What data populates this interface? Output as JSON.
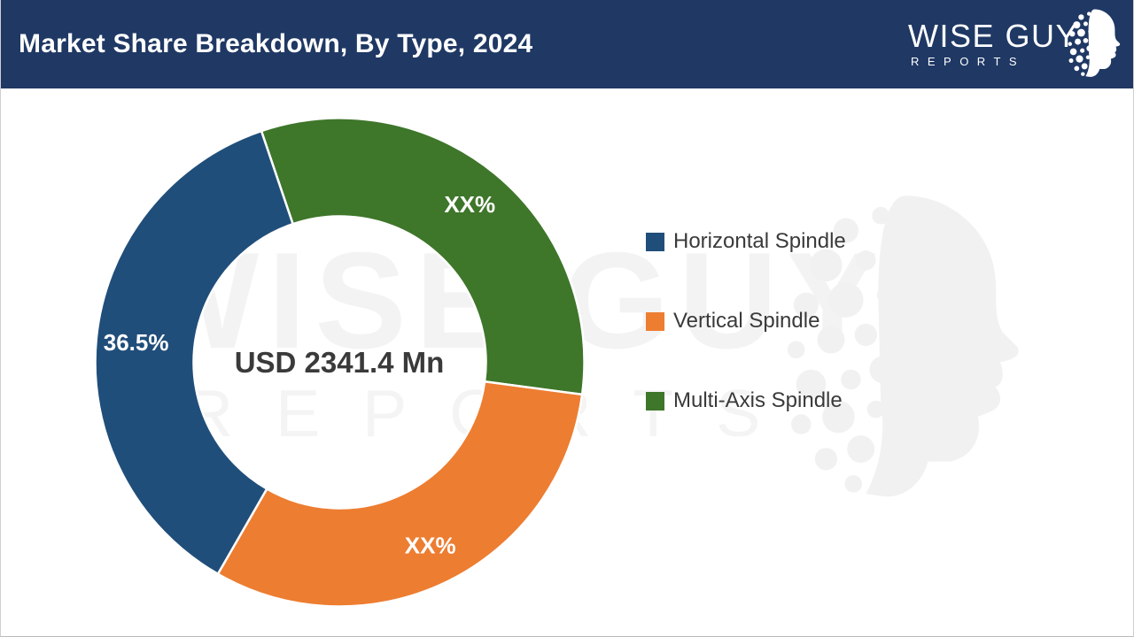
{
  "header": {
    "title": "Market Share Breakdown, By Type, 2024",
    "background_color": "#1f3864",
    "logo": {
      "line1": "WISE GUY",
      "line2": "REPORTS",
      "face_icon": "dotted-head-profile"
    }
  },
  "watermark": {
    "line1": "WISE GUY",
    "line2": "REPORTS",
    "face_icon": "dotted-head-profile"
  },
  "chart_data": {
    "type": "pie",
    "variant": "donut",
    "title": "Market Share Breakdown, By Type, 2024",
    "center_label": "USD 2341.4 Mn",
    "start_angle_deg": -18.7,
    "direction": "clockwise",
    "slices": [
      {
        "name": "Multi-Axis Spindle",
        "display_label": "XX%",
        "value_pct_est": 32.3,
        "color": "#3e762a"
      },
      {
        "name": "Vertical Spindle",
        "display_label": "XX%",
        "value_pct_est": 31.2,
        "color": "#ed7d31"
      },
      {
        "name": "Horizontal Spindle",
        "display_label": "36.5%",
        "value_pct_est": 36.5,
        "color": "#204e7a"
      }
    ],
    "legend_position": "right",
    "legend": [
      {
        "label": "Horizontal Spindle",
        "color": "#204e7a"
      },
      {
        "label": "Vertical Spindle",
        "color": "#ed7d31"
      },
      {
        "label": "Multi-Axis Spindle",
        "color": "#3e762a"
      }
    ],
    "label_text_color": "#ffffff",
    "center_text_color": "#3a3a3a"
  }
}
